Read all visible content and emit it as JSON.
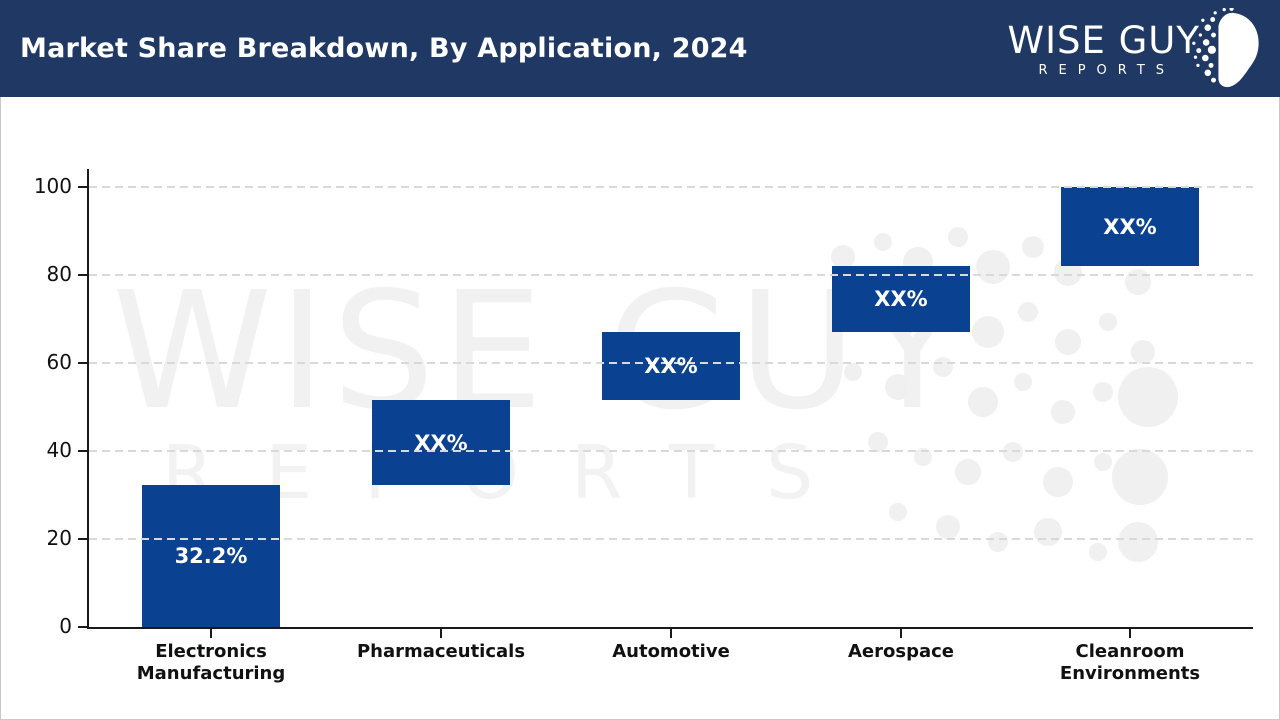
{
  "header": {
    "title": "Market Share Breakdown, By Application, 2024",
    "logo": {
      "name": "WISE GUY",
      "sub": "REPORTS"
    },
    "bg_color": "#203864"
  },
  "watermark": {
    "line1": "WISE GUY",
    "line2": "REPORTS"
  },
  "chart_data": {
    "type": "bar",
    "subtype": "floating-segment-waterfall",
    "title": "Market Share Breakdown, By Application, 2024",
    "categories": [
      "Electronics Manufacturing",
      "Pharmaceuticals",
      "Automotive",
      "Aerospace",
      "Cleanroom Environments"
    ],
    "segments": [
      {
        "category": "Electronics Manufacturing",
        "start": 0,
        "end": 32.2,
        "label": "32.2%"
      },
      {
        "category": "Pharmaceuticals",
        "start": 32.2,
        "end": 51.6,
        "label": "XX%"
      },
      {
        "category": "Automotive",
        "start": 51.6,
        "end": 67.0,
        "label": "XX%"
      },
      {
        "category": "Aerospace",
        "start": 67.0,
        "end": 82.0,
        "label": "XX%"
      },
      {
        "category": "Cleanroom Environments",
        "start": 82.0,
        "end": 100.0,
        "label": "XX%"
      }
    ],
    "ylim": [
      0,
      100
    ],
    "yticks": [
      0,
      20,
      40,
      60,
      80,
      100
    ],
    "xlabel": "",
    "ylabel": "",
    "bar_color": "#0B4191",
    "grid": true,
    "grid_style": "dashed",
    "legend": "none"
  }
}
